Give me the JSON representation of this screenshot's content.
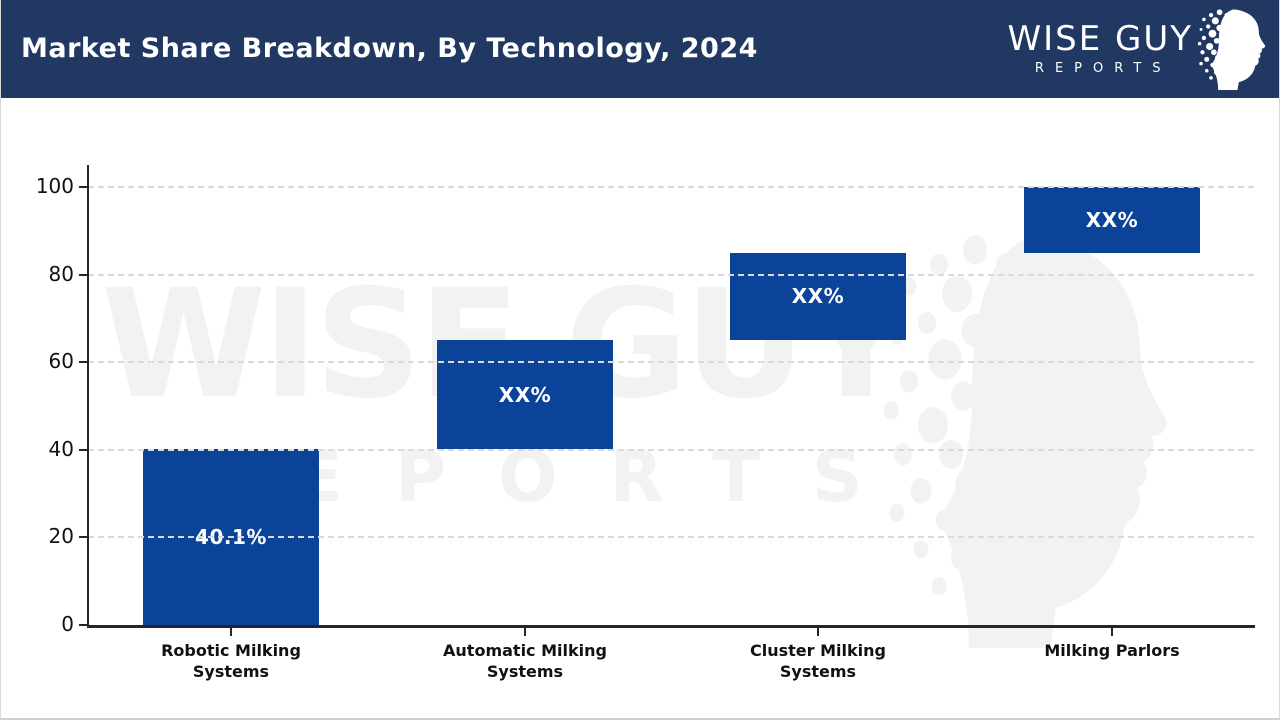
{
  "header": {
    "title": "Market Share Breakdown, By Technology, 2024",
    "logo": {
      "line1": "WISE GUY",
      "line2": "REPORTS"
    }
  },
  "watermark": {
    "line1": "WISE GUY",
    "line2": "REPORTS"
  },
  "chart_data": {
    "type": "bar",
    "subtype": "waterfall-segment-bars",
    "title": "Market Share Breakdown, By Technology, 2024",
    "categories": [
      "Robotic Milking\nSystems",
      "Automatic Milking\nSystems",
      "Cluster Milking\nSystems",
      "Milking Parlors"
    ],
    "bars": [
      {
        "start": 0,
        "end": 40.1,
        "label": "40.1%"
      },
      {
        "start": 40.1,
        "end": 65,
        "label": "XX%"
      },
      {
        "start": 65,
        "end": 85,
        "label": "XX%"
      },
      {
        "start": 85,
        "end": 100,
        "label": "XX%"
      }
    ],
    "yticks": [
      0,
      20,
      40,
      60,
      80,
      100
    ],
    "ylim": [
      0,
      105
    ],
    "grid": "horizontal-dashed",
    "legend": "none",
    "colors": {
      "bar": "#0b4398",
      "header_bg": "#203862",
      "grid": "#dadada",
      "axis": "#262626",
      "watermark": "#f2f2f3",
      "label_text": "#ffffff"
    }
  }
}
